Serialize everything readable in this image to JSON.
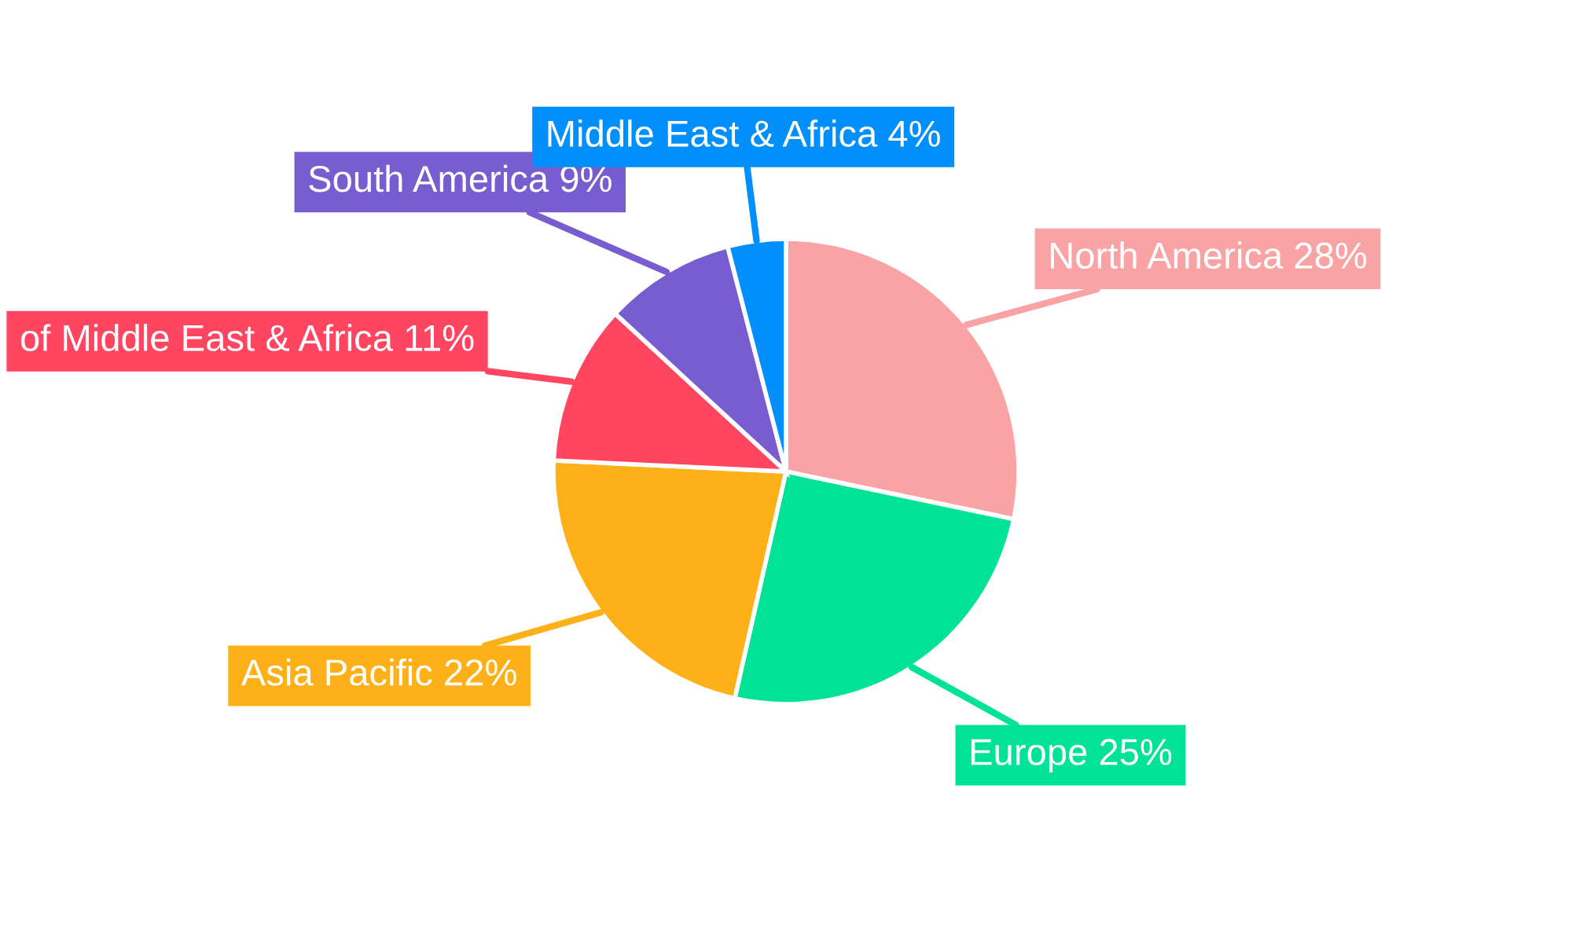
{
  "chart_data": {
    "type": "pie",
    "categories": [
      "North America",
      "Europe",
      "Asia Pacific",
      "of Middle East & Africa",
      "South America",
      "Middle East & Africa"
    ],
    "values": [
      28,
      25,
      22,
      11,
      9,
      4
    ],
    "value_labels": [
      "28%",
      "25%",
      "22%",
      "11%",
      "9%",
      "4%"
    ],
    "colors": [
      "#f9a3a4",
      "#00e396",
      "#feb019",
      "#ff4560",
      "#775dd0",
      "#008ffb"
    ],
    "legend": false
  }
}
